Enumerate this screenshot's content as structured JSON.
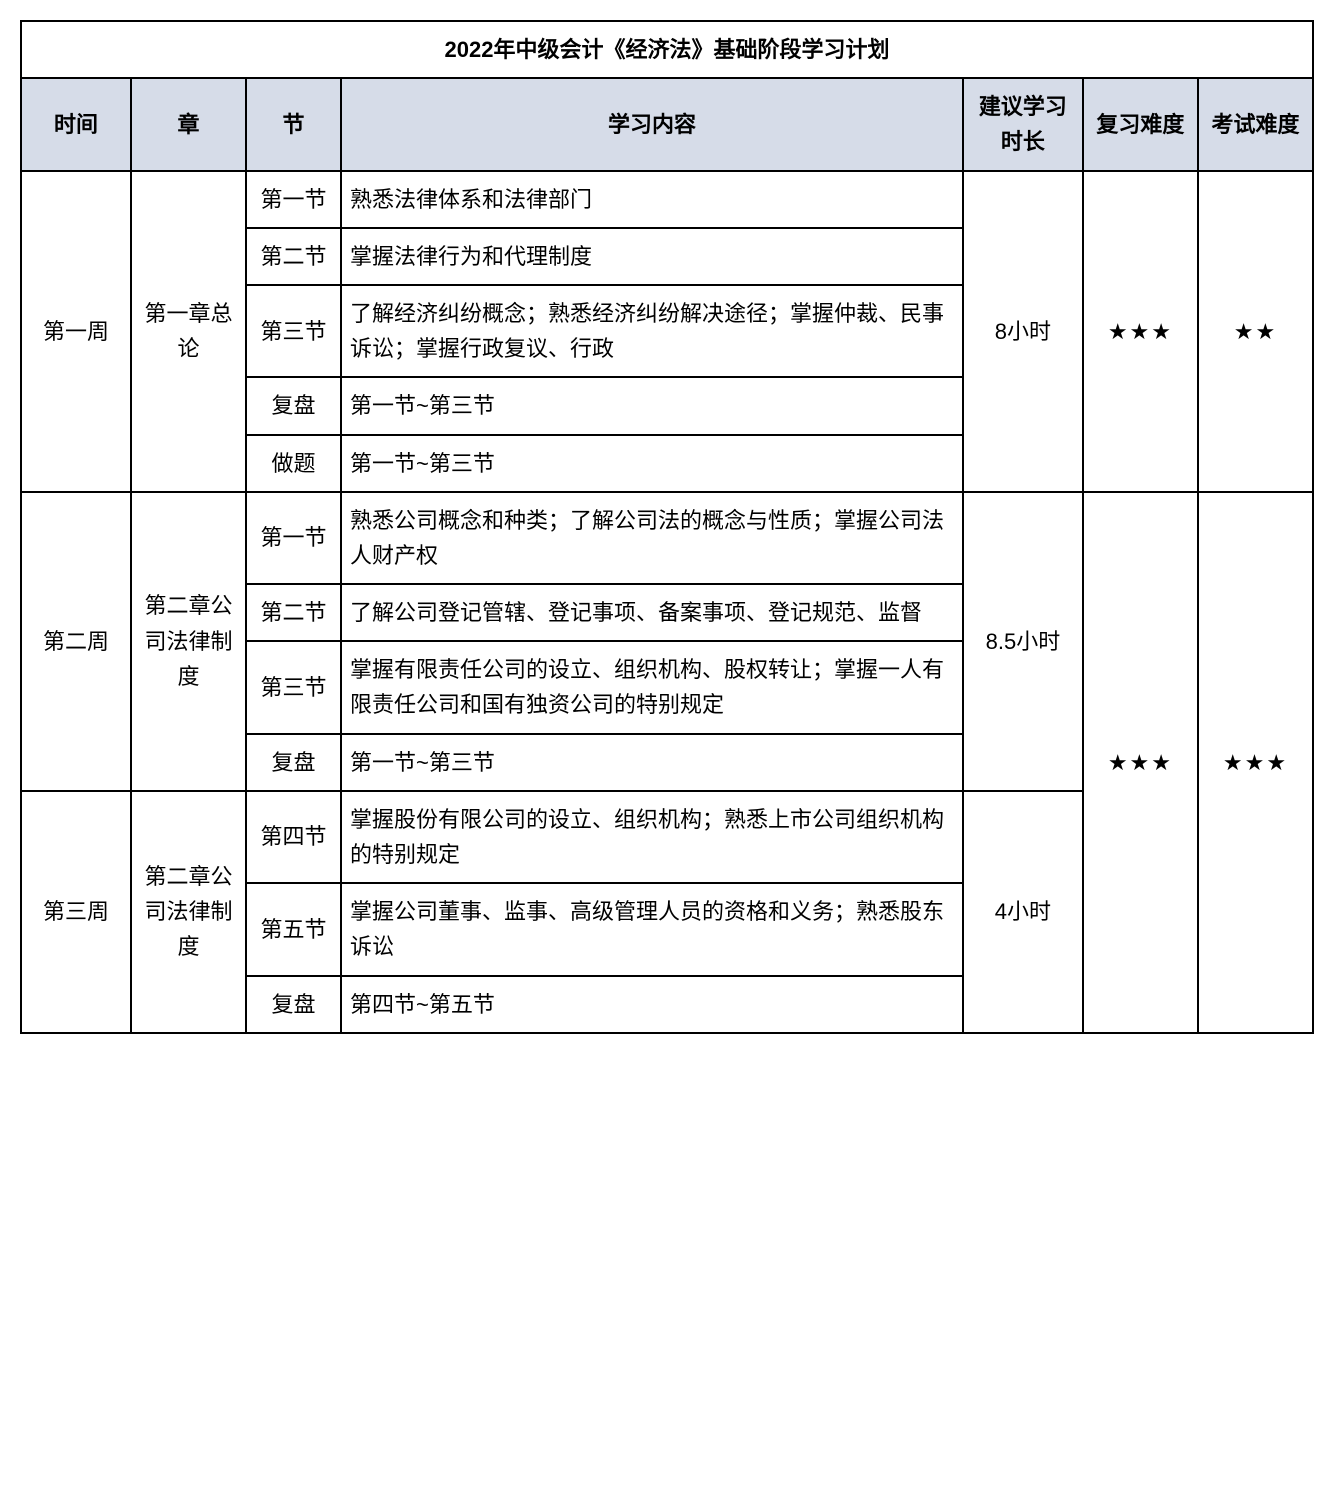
{
  "title": "2022年中级会计《经济法》基础阶段学习计划",
  "headers": {
    "time": "时间",
    "chapter": "章",
    "section": "节",
    "content": "学习内容",
    "duration": "建议学习时长",
    "review_difficulty": "复习难度",
    "exam_difficulty": "考试难度"
  },
  "colors": {
    "header_bg": "#d6dce8",
    "border": "#000000",
    "background": "#ffffff",
    "text": "#000000"
  },
  "fonts": {
    "title_size_pt": 22,
    "header_size_pt": 18,
    "body_size_pt": 16,
    "title_weight": "bold",
    "header_weight": "bold"
  },
  "weeks": [
    {
      "time": "第一周",
      "chapter": "第一章总论",
      "duration": "8小时",
      "review_stars": "★★★",
      "exam_stars": "★★",
      "rows": [
        {
          "section": "第一节",
          "content": "熟悉法律体系和法律部门"
        },
        {
          "section": "第二节",
          "content": "掌握法律行为和代理制度"
        },
        {
          "section": "第三节",
          "content": "了解经济纠纷概念；熟悉经济纠纷解决途径；掌握仲裁、民事诉讼；掌握行政复议、行政"
        },
        {
          "section": "复盘",
          "content": "第一节~第三节"
        },
        {
          "section": "做题",
          "content": "第一节~第三节"
        }
      ]
    },
    {
      "time": "第二周",
      "chapter": "第二章公司法律制度",
      "duration": "8.5小时",
      "rows": [
        {
          "section": "第一节",
          "content": "熟悉公司概念和种类；了解公司法的概念与性质；掌握公司法人财产权"
        },
        {
          "section": "第二节",
          "content": "了解公司登记管辖、登记事项、备案事项、登记规范、监督"
        },
        {
          "section": "第三节",
          "content": "掌握有限责任公司的设立、组织机构、股权转让；掌握一人有限责任公司和国有独资公司的特别规定"
        },
        {
          "section": "复盘",
          "content": "第一节~第三节"
        }
      ]
    },
    {
      "time": "第三周",
      "chapter": "第二章公司法律制度",
      "duration": "4小时",
      "review_stars": "★★★",
      "exam_stars": "★★★",
      "rows": [
        {
          "section": "第四节",
          "content": "掌握股份有限公司的设立、组织机构；熟悉上市公司组织机构的特别规定"
        },
        {
          "section": "第五节",
          "content": "掌握公司董事、监事、高级管理人员的资格和义务；熟悉股东诉讼"
        },
        {
          "section": "复盘",
          "content": "第四节~第五节"
        }
      ]
    }
  ],
  "group2_review_rowspan": 7,
  "group2_exam_rowspan": 7
}
